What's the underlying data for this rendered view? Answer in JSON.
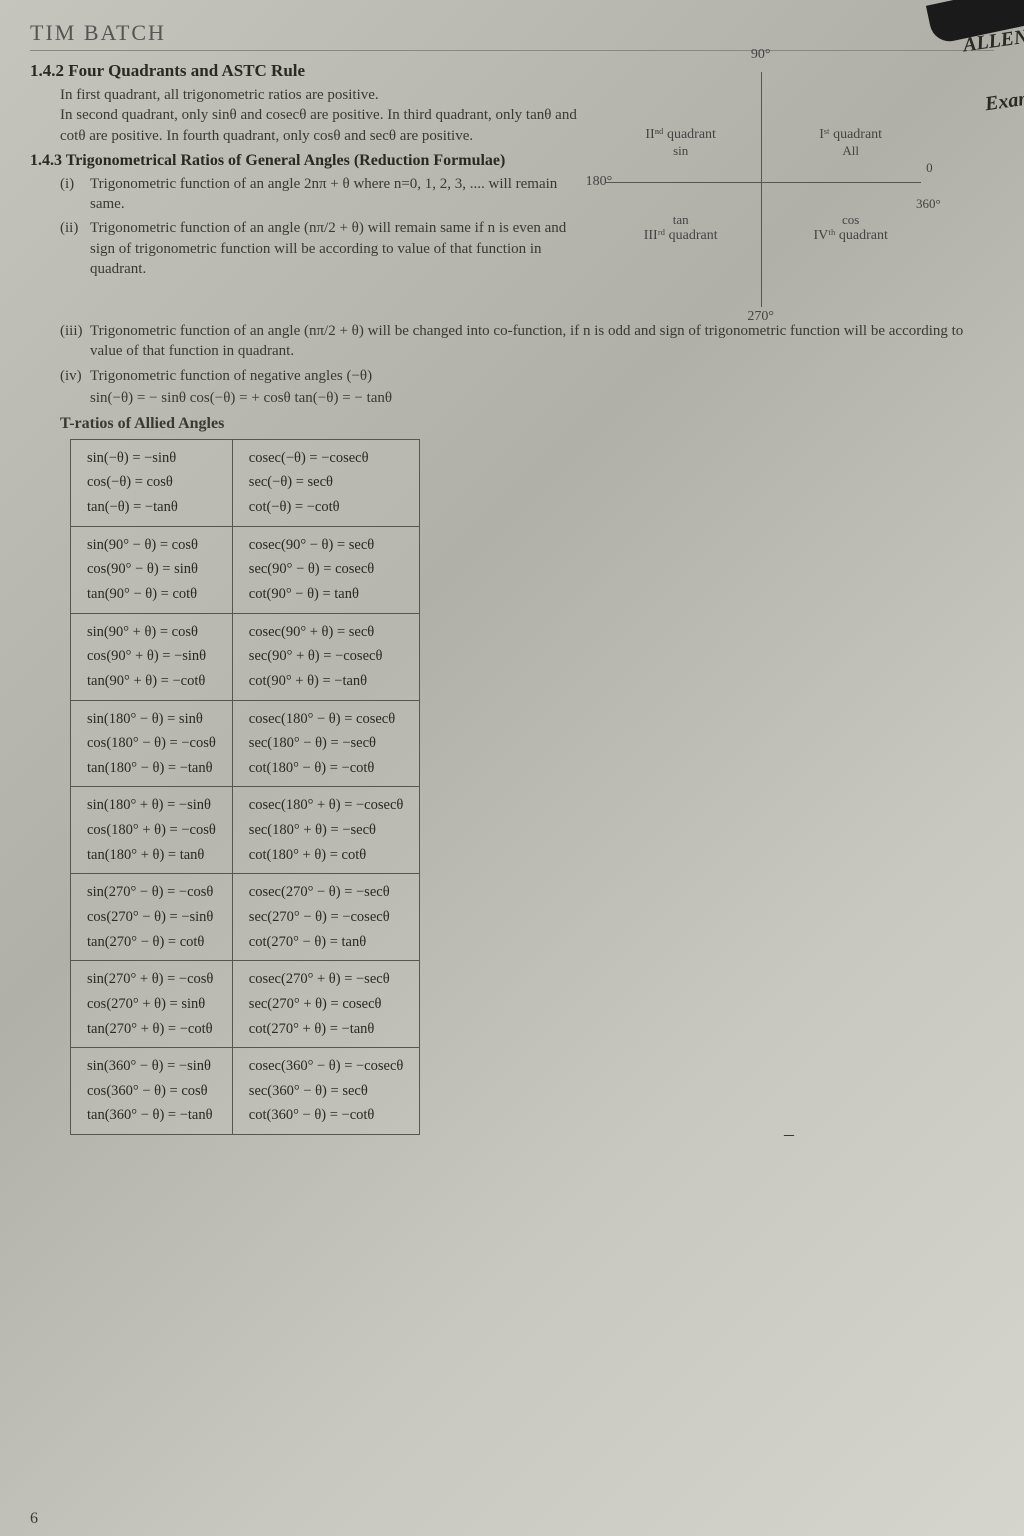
{
  "header": "TIM BATCH",
  "corner": {
    "allen": "ALLEN",
    "exam": "Exam"
  },
  "s142": {
    "title": "1.4.2 Four Quadrants and ASTC Rule",
    "p1": "In first quadrant, all trigonometric ratios are positive.",
    "p2": "In second quadrant, only sinθ and cosecθ are positive. In third quadrant, only tanθ and cotθ are positive. In fourth quadrant, only cosθ and secθ are positive."
  },
  "s143": {
    "title": "1.4.3 Trigonometrical Ratios of General Angles (Reduction Formulae)",
    "i1": "Trigonometric function of an angle 2nπ + θ where n=0, 1, 2, 3, .... will remain same.",
    "i2": "Trigonometric function of an angle (nπ/2 + θ) will remain same if n is even and sign of trigonometric function will be according to value of that function in quadrant.",
    "i3": "Trigonometric function of an angle (nπ/2 + θ) will be changed into co-function, if n is odd and sign of trigonometric function will be according to value of that function in quadrant.",
    "i4": "Trigonometric function of negative angles (−θ)",
    "i4f": "sin(−θ) = − sinθ      cos(−θ) = + cosθ      tan(−θ) = − tanθ"
  },
  "quad": {
    "deg90": "90°",
    "deg180": "180°",
    "deg270": "270°",
    "deg0": "0",
    "deg360": "360°",
    "q2a": "IIⁿᵈ quadrant",
    "q2b": "sin",
    "q1a": "Iˢᵗ quadrant",
    "q1b": "All",
    "q3a": "IIIʳᵈ quadrant",
    "q3b": "tan",
    "q4a": "IVᵗʰ quadrant",
    "q4b": "cos"
  },
  "tableTitle": "T-ratios of Allied Angles",
  "rows": [
    [
      "sin(−θ) = −sinθ<br>cos(−θ) = cosθ<br>tan(−θ) = −tanθ",
      "cosec(−θ) = −cosecθ<br>sec(−θ) = secθ<br>cot(−θ) = −cotθ"
    ],
    [
      "sin(90° − θ) = cosθ<br>cos(90° − θ) = sinθ<br>tan(90° − θ) = cotθ",
      "cosec(90° − θ) = secθ<br>sec(90° − θ) = cosecθ<br>cot(90° − θ) = tanθ"
    ],
    [
      "sin(90° + θ) = cosθ<br>cos(90° + θ) = −sinθ<br>tan(90° + θ) = −cotθ",
      "cosec(90° + θ) = secθ<br>sec(90° + θ) = −cosecθ<br>cot(90° + θ) = −tanθ"
    ],
    [
      "sin(180° − θ) = sinθ<br>cos(180° − θ) = −cosθ<br>tan(180° − θ) = −tanθ",
      "cosec(180° − θ) = cosecθ<br>sec(180° − θ) = −secθ<br>cot(180° − θ) = −cotθ"
    ],
    [
      "sin(180° + θ) = −sinθ<br>cos(180° + θ) = −cosθ<br>tan(180° + θ) = tanθ",
      "cosec(180° + θ) = −cosecθ<br>sec(180° + θ) = −secθ<br>cot(180° + θ) = cotθ"
    ],
    [
      "sin(270° − θ) = −cosθ<br>cos(270° − θ) = −sinθ<br>tan(270° − θ) = cotθ",
      "cosec(270° − θ) = −secθ<br>sec(270° − θ) = −cosecθ<br>cot(270° − θ) = tanθ"
    ],
    [
      "sin(270° + θ) = −cosθ<br>cos(270° + θ) = sinθ<br>tan(270° + θ) = −cotθ",
      "cosec(270° + θ) = −secθ<br>sec(270° + θ) = cosecθ<br>cot(270° + θ) = −tanθ"
    ],
    [
      "sin(360° − θ) = −sinθ<br>cos(360° − θ) = cosθ<br>tan(360° − θ) = −tanθ",
      "cosec(360° − θ) = −cosecθ<br>sec(360° − θ) = secθ<br>cot(360° − θ) = −cotθ"
    ]
  ],
  "pageNum": "6"
}
